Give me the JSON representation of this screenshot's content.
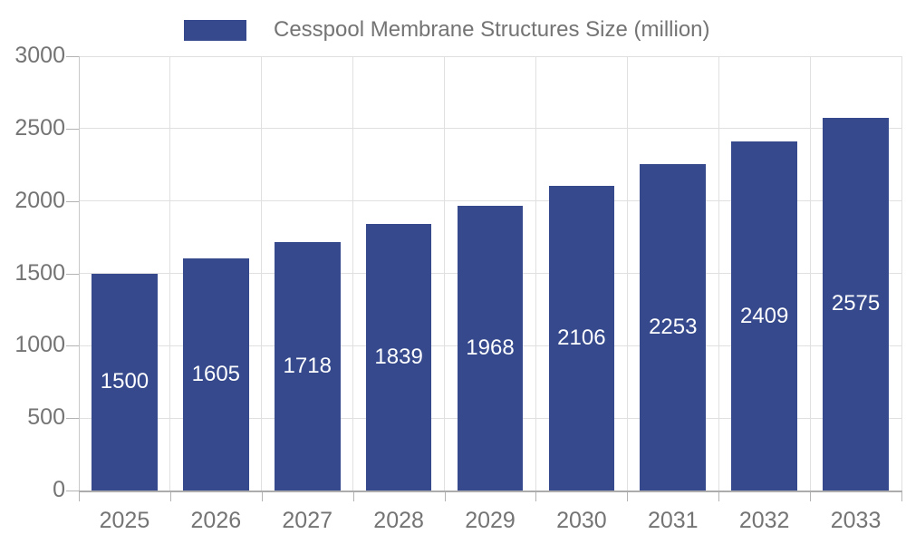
{
  "chart_data": {
    "type": "bar",
    "title": "Cesspool Membrane Structures Size (million)",
    "series_name": "Cesspool Membrane Structures Size (million)",
    "categories": [
      "2025",
      "2026",
      "2027",
      "2028",
      "2029",
      "2030",
      "2031",
      "2032",
      "2033"
    ],
    "values": [
      1500,
      1605,
      1718,
      1839,
      1968,
      2106,
      2253,
      2409,
      2575
    ],
    "bar_labels_visible": true,
    "xlabel": "",
    "ylabel": "",
    "ylim": [
      0,
      3000
    ],
    "yticks": [
      0,
      500,
      1000,
      1500,
      2000,
      2500,
      3000
    ],
    "grid": true,
    "legend_position": "top",
    "colors": {
      "bar": "#35498C",
      "bar_label": "#FFFFFF",
      "legend_text": "#747474",
      "tick_label": "#747474",
      "gridline": "#E0E0E0",
      "y_axis_line": "#C9C9C9",
      "x_axis_line": "#ACACAC",
      "tick_mark": "#B3B3B3",
      "background": "#FFFFFF"
    }
  }
}
